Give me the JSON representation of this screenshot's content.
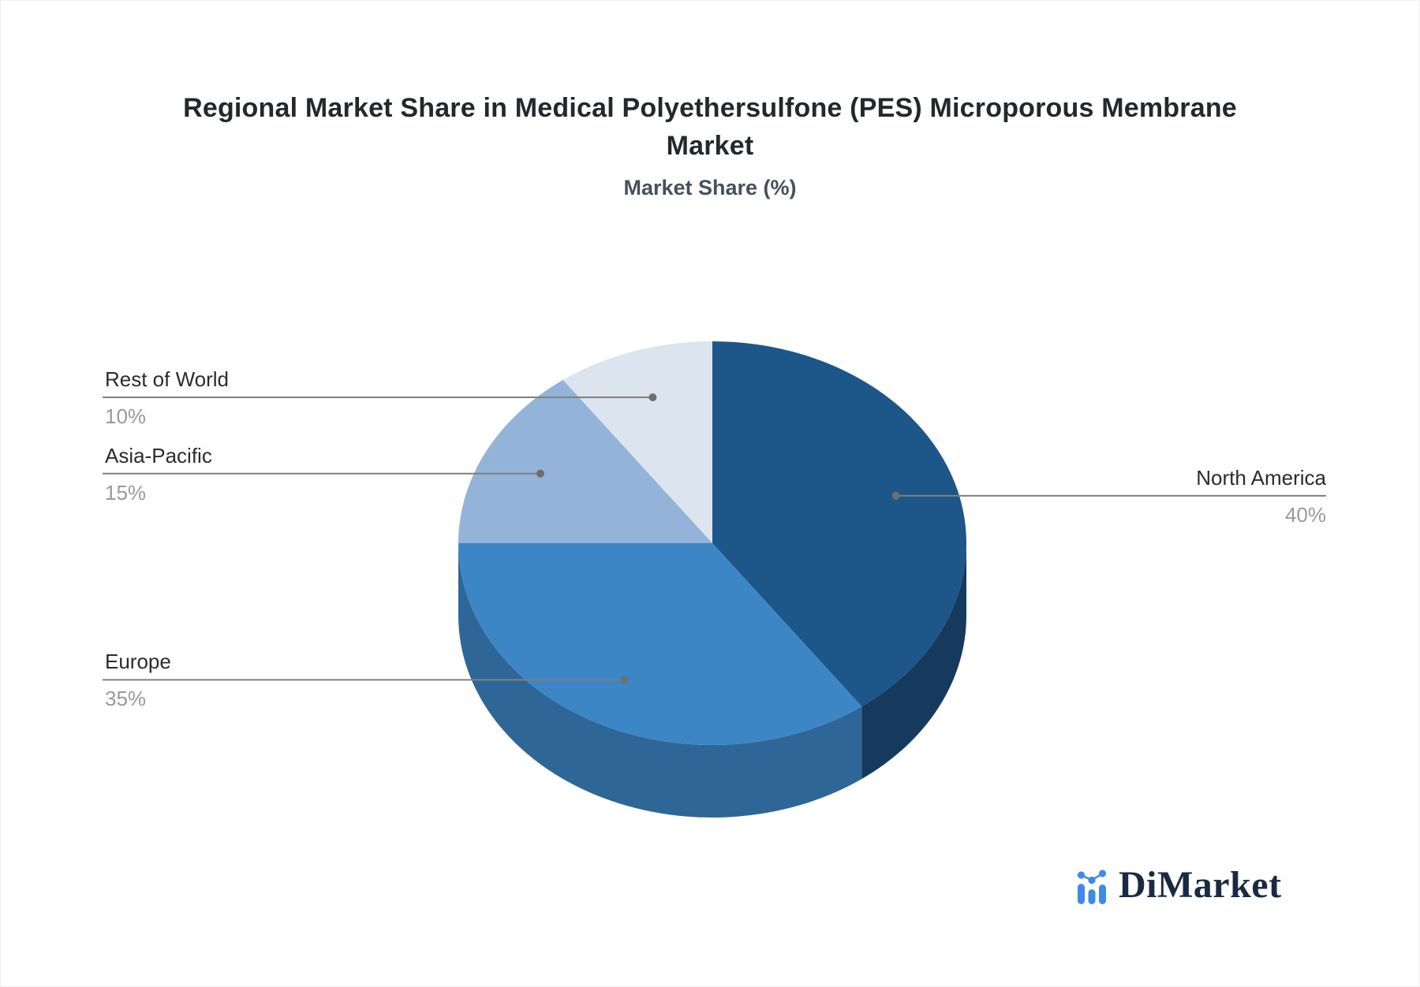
{
  "header": {
    "title_line1": "Regional Market Share in Medical Polyethersulfone (PES) Microporous Membrane",
    "title_line2": "Market",
    "subtitle": "Market Share (%)"
  },
  "chart_data": {
    "type": "pie",
    "title": "Regional Market Share in Medical Polyethersulfone (PES) Microporous Membrane Market",
    "subtitle": "Market Share (%)",
    "unit": "%",
    "effect": "3d",
    "start_angle_deg": 0,
    "direction": "clockwise",
    "slices": [
      {
        "label": "North America",
        "value": 40,
        "value_label": "40%",
        "color": "#1d5688",
        "callout_side": "right"
      },
      {
        "label": "Europe",
        "value": 35,
        "value_label": "35%",
        "color": "#3c86c6",
        "callout_side": "left"
      },
      {
        "label": "Asia-Pacific",
        "value": 15,
        "value_label": "15%",
        "color": "#93b4d8",
        "callout_side": "left"
      },
      {
        "label": "Rest of World",
        "value": 10,
        "value_label": "10%",
        "color": "#dce4ef",
        "callout_side": "left"
      }
    ],
    "depth_colors": {
      "left": "#2e6697",
      "right": "#163a5e"
    },
    "leader_line_color": "#7f7f7f",
    "leader_dot_color": "#6f6f6f",
    "label_color": "#2b2b2b",
    "value_color": "#999999",
    "legend": "none"
  },
  "brand": {
    "name": "DiMarket",
    "icon": "bar-sparkline-icon",
    "text_color": "#1b2a42",
    "icon_color": "#4189e8"
  }
}
